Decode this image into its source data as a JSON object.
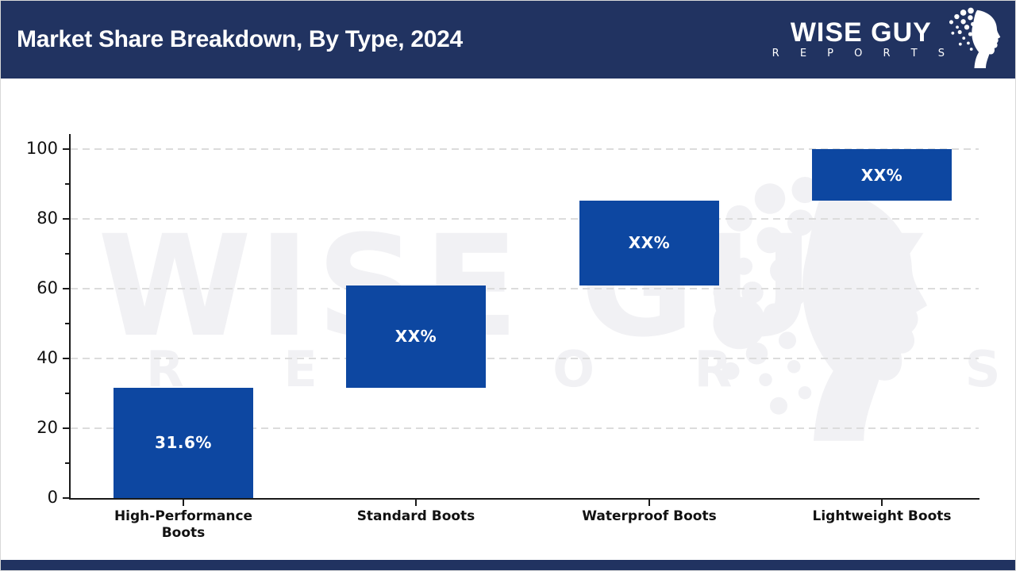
{
  "header": {
    "title": "Market Share Breakdown, By Type, 2024",
    "background_color": "#213361",
    "logo": {
      "line1": "WISE GUY",
      "line2": "R E P O R T S"
    }
  },
  "watermark": {
    "line1": "WISE GUY",
    "line2": "R E P O R T S"
  },
  "chart_data": {
    "type": "bar",
    "subtype": "floating-segment-waterfall",
    "title": "Market Share Breakdown, By Type, 2024",
    "xlabel": "",
    "ylabel": "",
    "ylim": [
      0,
      100
    ],
    "y_ticks": [
      0,
      20,
      40,
      60,
      80,
      100
    ],
    "y_minor_ticks": [
      10,
      30,
      50,
      70,
      90
    ],
    "grid": "horizontal-dashed",
    "legend": "none",
    "categories": [
      "High-Performance Boots",
      "Standard Boots",
      "Waterproof Boots",
      "Lightweight Boots"
    ],
    "segments": [
      {
        "category": "High-Performance Boots",
        "start": 0,
        "end": 31.6,
        "label": "31.6%"
      },
      {
        "category": "Standard Boots",
        "start": 31.6,
        "end": 61.0,
        "label": "XX%"
      },
      {
        "category": "Waterproof Boots",
        "start": 61.0,
        "end": 85.2,
        "label": "XX%"
      },
      {
        "category": "Lightweight Boots",
        "start": 85.2,
        "end": 100,
        "label": "XX%"
      }
    ],
    "bar_color": "#0d47a1",
    "bar_label_color": "#ffffff",
    "gridline_color": "#dcdcdc",
    "axis_color": "#1a1a1a",
    "watermark_color": "#f1f1f4"
  }
}
